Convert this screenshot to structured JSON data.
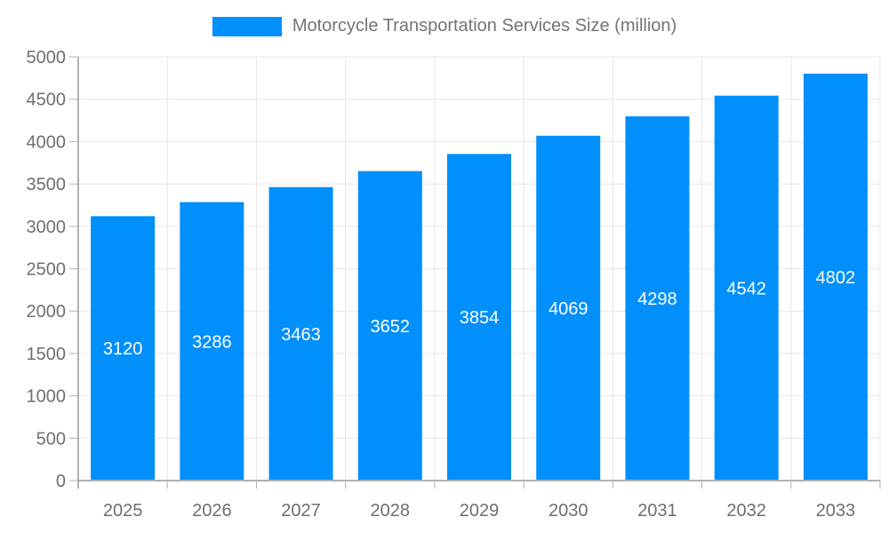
{
  "chart_data": {
    "type": "bar",
    "title": "",
    "legend_label": "Motorcycle Transportation Services Size (million)",
    "legend_position": "top",
    "categories": [
      "2025",
      "2026",
      "2027",
      "2028",
      "2029",
      "2030",
      "2031",
      "2032",
      "2033"
    ],
    "values": [
      3120,
      3286,
      3463,
      3652,
      3854,
      4069,
      4298,
      4542,
      4802
    ],
    "xlabel": "",
    "ylabel": "",
    "ylim": [
      0,
      5000
    ],
    "ytick_step": 500,
    "grid": true,
    "bar_color": "#008FFB",
    "value_label_color": "#ffffff",
    "axis_text_color": "#6f6f6f",
    "grid_color": "#e7e7e7",
    "axis_line_color": "#b1b1b1"
  }
}
